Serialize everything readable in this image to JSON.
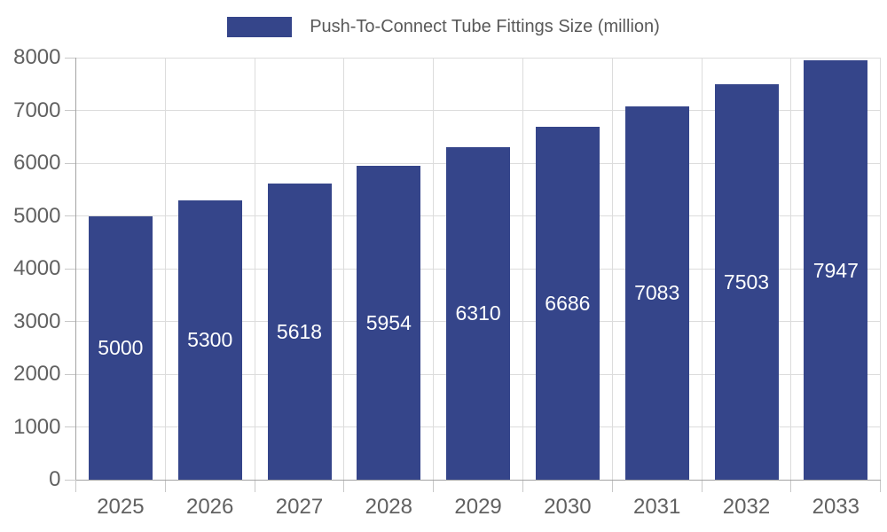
{
  "legend": {
    "label": "Push-To-Connect Tube Fittings Size (million)"
  },
  "chart_data": {
    "type": "bar",
    "title": "Push-To-Connect Tube Fittings Size (million)",
    "series_name": "Push-To-Connect Tube Fittings Size (million)",
    "categories": [
      "2025",
      "2026",
      "2027",
      "2028",
      "2029",
      "2030",
      "2031",
      "2032",
      "2033"
    ],
    "values": [
      5000,
      5300,
      5618,
      5954,
      6310,
      6686,
      7083,
      7503,
      7947
    ],
    "value_labels": [
      "5000",
      "5300",
      "5618",
      "5954",
      "6310",
      "6686",
      "7083",
      "7503",
      "7947"
    ],
    "xlabel": "",
    "ylabel": "",
    "ylim": [
      0,
      8000
    ],
    "ytick_step": 1000,
    "grid": true,
    "grid_vertical": true,
    "legend_position": "top-center",
    "colors": {
      "bar": "#35458A",
      "value_label": "#ffffff",
      "axis_label": "#616161",
      "legend_text": "#595959",
      "gridline": "#dcdcdc",
      "axis_line": "#a3a3a3",
      "tick_mark": "#c8c8c8",
      "background": "#ffffff"
    }
  }
}
